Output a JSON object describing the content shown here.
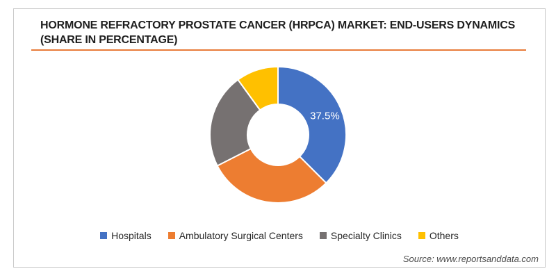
{
  "header": {
    "title_line1": "HORMONE REFRACTORY PROSTATE CANCER (HRPCA) MARKET: END-USERS DYNAMICS",
    "title_line2": "(SHARE IN PERCENTAGE)"
  },
  "footer": {
    "source": "Source: www.reportsanddata.com"
  },
  "styles": {
    "accent_rule": "#e87b39",
    "card_border": "#c9c9c9",
    "title_color": "#1f1f1f",
    "data_label_color": "#ffffff"
  },
  "chart_data": {
    "type": "pie",
    "subtype": "donut",
    "title": "HORMONE REFRACTORY PROSTATE CANCER (HRPCA) MARKET: END-USERS DYNAMICS (SHARE IN PERCENTAGE)",
    "categories": [
      "Hospitals",
      "Ambulatory Surgical Centers",
      "Specialty Clinics",
      "Others"
    ],
    "values": [
      37.5,
      30,
      22.5,
      10
    ],
    "colors": [
      "#4472c4",
      "#ed7d31",
      "#767171",
      "#ffc000"
    ],
    "data_labels": [
      "37.5%",
      "",
      "",
      ""
    ],
    "legend_position": "bottom",
    "hole_ratio": 0.45,
    "start_angle_deg": 0,
    "direction": "clockwise",
    "segment_gap_stroke": "#ffffff"
  }
}
